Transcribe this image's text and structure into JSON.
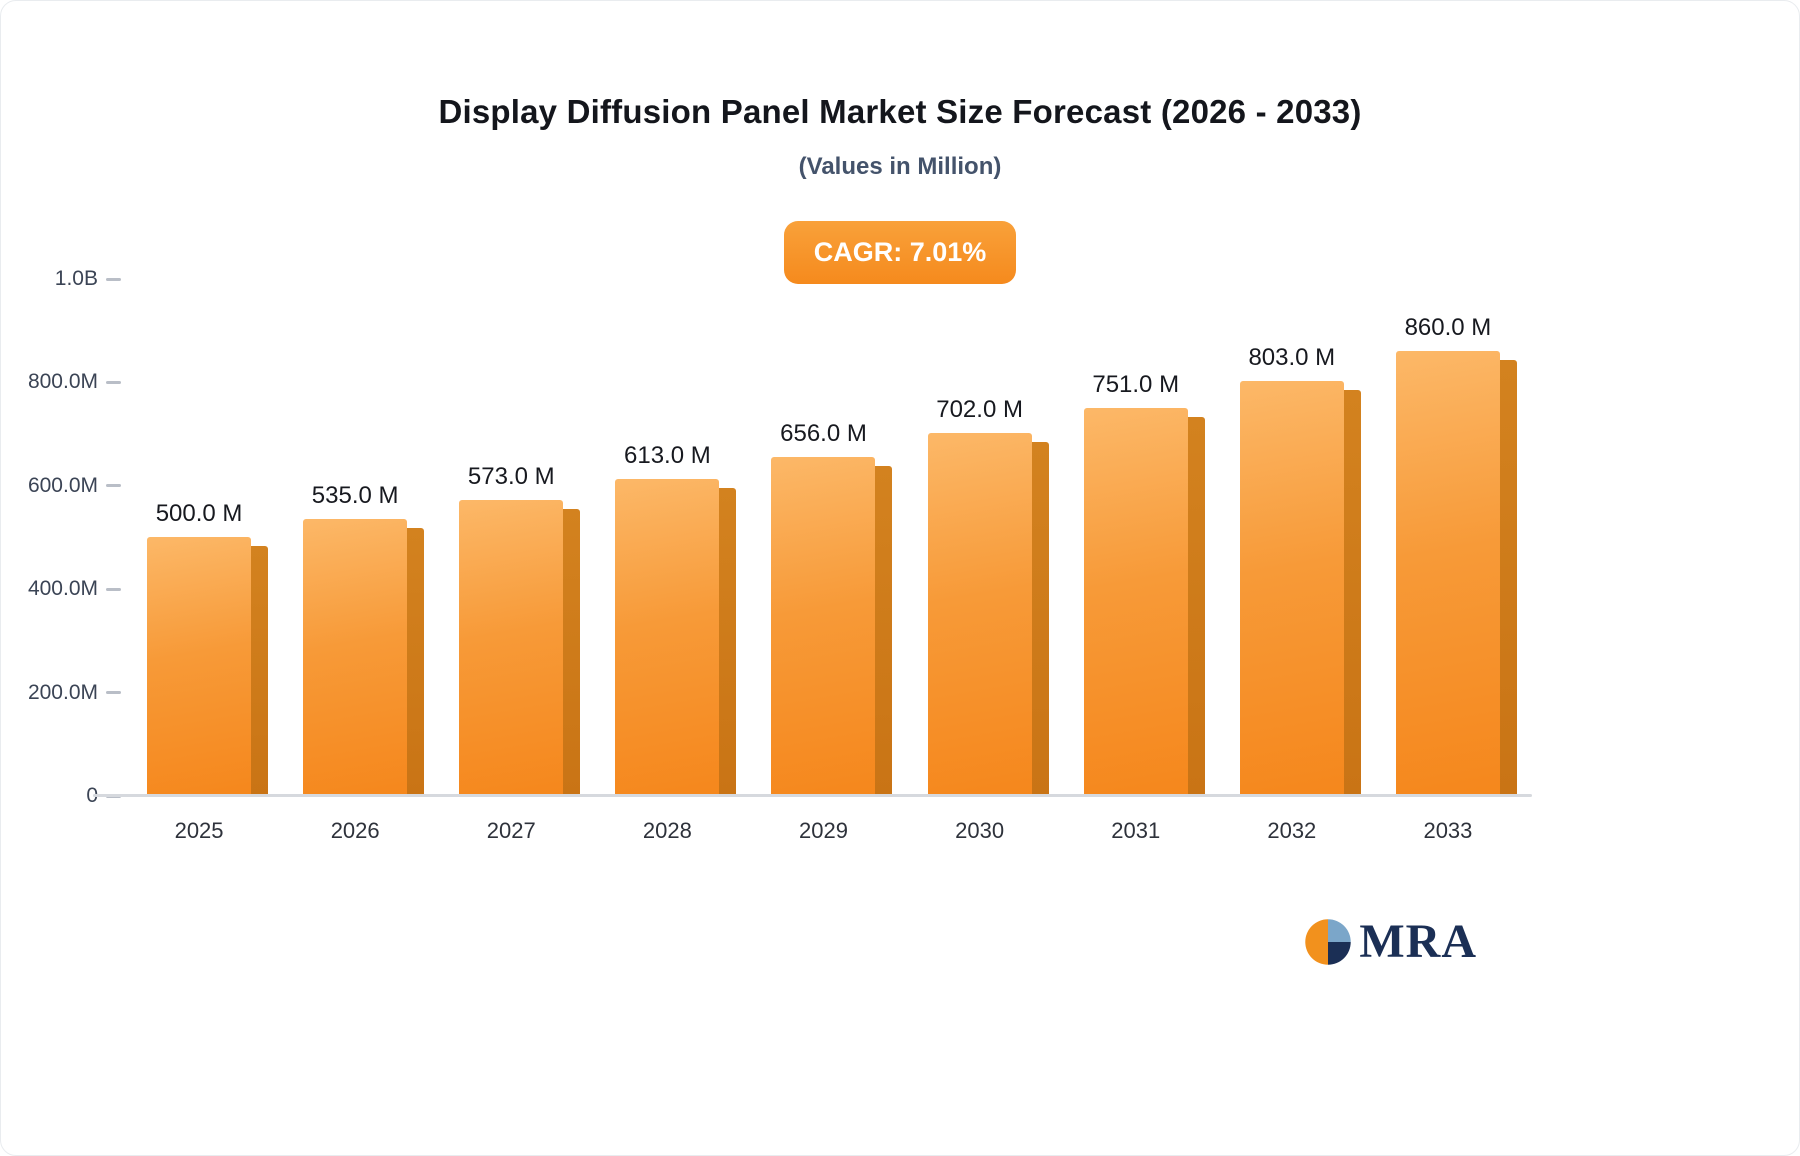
{
  "header": {
    "title": "Display Diffusion Panel Market Size Forecast (2026 - 2033)",
    "subtitle": "(Values in Million)",
    "badge": "CAGR: 7.01%"
  },
  "logo": {
    "text": "MRA"
  },
  "colors": {
    "bar_top": "#fcb868",
    "bar_bottom": "#f5871c",
    "bar_side": "#c97415",
    "badge_bg": "#f58a1d",
    "title": "#14161c",
    "subtitle": "#44536b",
    "axis_line": "#d6d9de"
  },
  "chart_data": {
    "type": "bar",
    "title": "Display Diffusion Panel Market Size Forecast (2026 - 2033)",
    "subtitle": "(Values in Million)",
    "annotation": "CAGR: 7.01%",
    "categories": [
      "2025",
      "2026",
      "2027",
      "2028",
      "2029",
      "2030",
      "2031",
      "2032",
      "2033"
    ],
    "values": [
      500,
      535,
      573,
      613,
      656,
      702,
      751,
      803,
      860
    ],
    "value_labels": [
      "500.0 M",
      "535.0 M",
      "573.0 M",
      "613.0 M",
      "656.0 M",
      "702.0 M",
      "751.0 M",
      "803.0 M",
      "860.0 M"
    ],
    "unit": "Million",
    "xlabel": "",
    "ylabel": "",
    "ylim": [
      0,
      1000
    ],
    "grid": false,
    "legend": false,
    "yticks": [
      {
        "value": 0,
        "label": "0"
      },
      {
        "value": 200,
        "label": "200.0M"
      },
      {
        "value": 400,
        "label": "400.0M"
      },
      {
        "value": 600,
        "label": "600.0M"
      },
      {
        "value": 800,
        "label": "800.0M"
      },
      {
        "value": 1000,
        "label": "1.0B"
      }
    ]
  }
}
